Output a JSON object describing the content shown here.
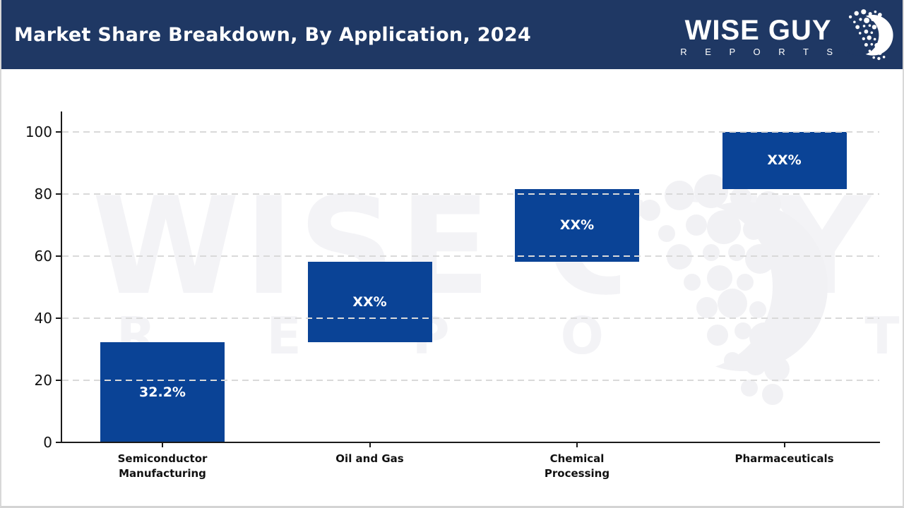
{
  "header": {
    "title": "Market Share Breakdown, By Application, 2024",
    "background_color": "#1f3864",
    "title_color": "#ffffff",
    "logo": {
      "primary": "WISE GUY",
      "secondary": "R E P O R T S"
    }
  },
  "watermark": {
    "primary": "WISE GUY",
    "secondary": "R E P O R T S"
  },
  "chart_data": {
    "type": "bar",
    "subtype": "waterfall",
    "title": "Market Share Breakdown, By Application, 2024",
    "categories": [
      "Semiconductor Manufacturing",
      "Oil and Gas",
      "Chemical Processing",
      "Pharmaceuticals"
    ],
    "category_lines": [
      [
        "Semiconductor",
        "Manufacturing"
      ],
      [
        "Oil and Gas"
      ],
      [
        "Chemical",
        "Processing"
      ],
      [
        "Pharmaceuticals"
      ]
    ],
    "bars": [
      {
        "category": "Semiconductor Manufacturing",
        "label": "32.2%",
        "start": 0,
        "end": 32.2
      },
      {
        "category": "Oil and Gas",
        "label": "XX%",
        "start": 32.2,
        "end": 58.1
      },
      {
        "category": "Chemical Processing",
        "label": "XX%",
        "start": 58.1,
        "end": 81.7
      },
      {
        "category": "Pharmaceuticals",
        "label": "XX%",
        "start": 81.7,
        "end": 100
      }
    ],
    "xlabel": "",
    "ylabel": "",
    "ylim": [
      0,
      100
    ],
    "yticks": [
      0,
      20,
      40,
      60,
      80,
      100
    ],
    "grid": "horizontal-dashed",
    "legend": "none",
    "colors": {
      "bar": "#0a4396",
      "bar_label": "#ffffff",
      "grid": "#d9d9d9",
      "axis": "#1a1a1a",
      "tick_label": "#111111"
    }
  }
}
